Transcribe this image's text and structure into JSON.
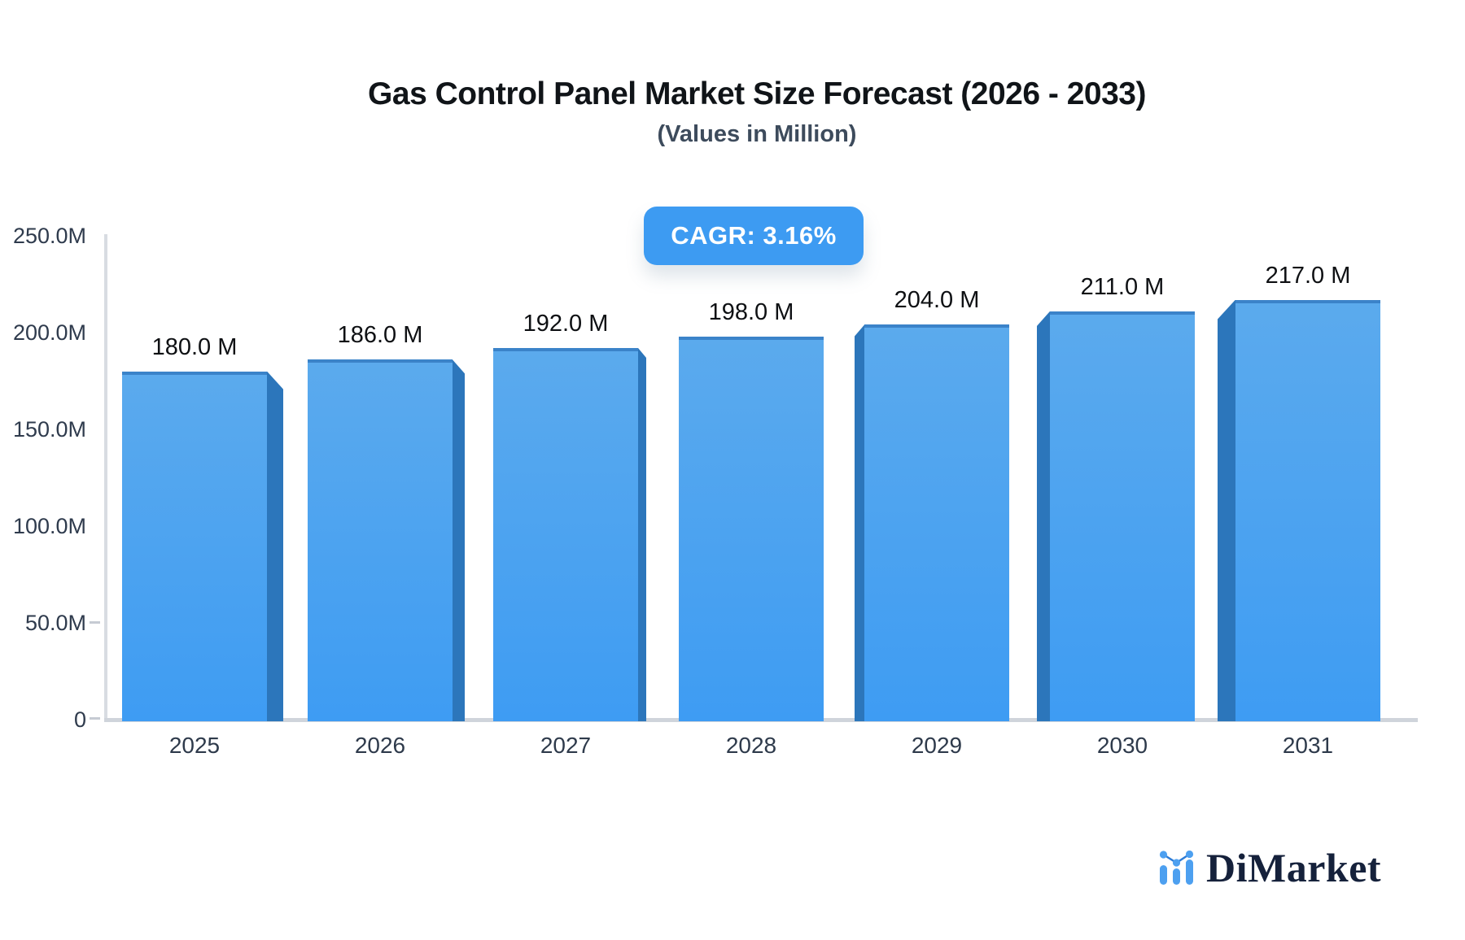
{
  "title": "Gas Control Panel Market Size Forecast (2026 - 2033)",
  "subtitle": "(Values in Million)",
  "badge": {
    "label": "CAGR: 3.16%"
  },
  "chart_data": {
    "type": "bar",
    "title": "Gas Control Panel Market Size Forecast (2026 - 2033)",
    "subtitle": "(Values in Million)",
    "categories": [
      "2025",
      "2026",
      "2027",
      "2028",
      "2029",
      "2030",
      "2031"
    ],
    "values": [
      180,
      186,
      192,
      198,
      204,
      211,
      217
    ],
    "value_labels": [
      "180.0 M",
      "186.0 M",
      "192.0 M",
      "198.0 M",
      "204.0 M",
      "211.0 M",
      "217.0 M"
    ],
    "unit": "Million",
    "xlabel": "",
    "ylabel": "",
    "ylim": [
      0,
      250
    ],
    "yticks": [
      0,
      50,
      100,
      150,
      200,
      250
    ],
    "ytick_labels": [
      "0",
      "50.0M",
      "100.0M",
      "150.0M",
      "200.0M",
      "250.0M"
    ],
    "grid": false,
    "legend": "none",
    "bar_style": "3d-perspective",
    "cagr": "3.16%",
    "colors": {
      "bar_gradient_top": "#5BAAED",
      "bar_gradient_bottom": "#3E9CF3",
      "bar_side": "#2C76BB",
      "bar_cap": "#3B83C9",
      "accent": "#3D9BF2"
    }
  },
  "watermark": {
    "brand": "DiMarket"
  }
}
